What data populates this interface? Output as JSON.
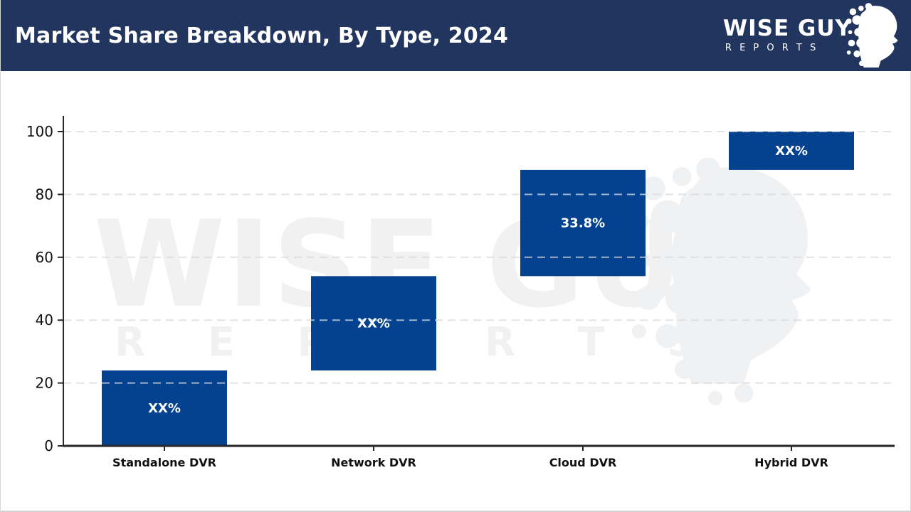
{
  "header": {
    "title": "Market Share Breakdown, By Type, 2024",
    "bg_color": "#22355F",
    "logo": {
      "line1": "WISE GUY",
      "line2": "R E P O R T S"
    }
  },
  "watermark": {
    "line1": "WISE GUY",
    "line2": "R E P O R T S"
  },
  "chart_data": {
    "type": "bar",
    "subtype": "waterfall",
    "title": "Market Share Breakdown, By Type, 2024",
    "xlabel": "",
    "ylabel": "",
    "categories": [
      "Standalone DVR",
      "Network DVR",
      "Cloud DVR",
      "Hybrid DVR"
    ],
    "segments": [
      {
        "category": "Standalone DVR",
        "start": 0,
        "end": 24,
        "label": "XX%"
      },
      {
        "category": "Network DVR",
        "start": 24,
        "end": 54,
        "label": "XX%"
      },
      {
        "category": "Cloud DVR",
        "start": 54,
        "end": 87.8,
        "label": "33.8%"
      },
      {
        "category": "Hybrid DVR",
        "start": 87.8,
        "end": 100,
        "label": "XX%"
      }
    ],
    "y_ticks": [
      0,
      20,
      40,
      60,
      80,
      100
    ],
    "ylim": [
      0,
      105
    ],
    "grid": true,
    "legend": "none",
    "colors": {
      "bar": "#04428F",
      "bar_label": "#ffffff",
      "grid": "#d9d9d9",
      "axis": "#262626",
      "tick_label": "#111111"
    }
  }
}
